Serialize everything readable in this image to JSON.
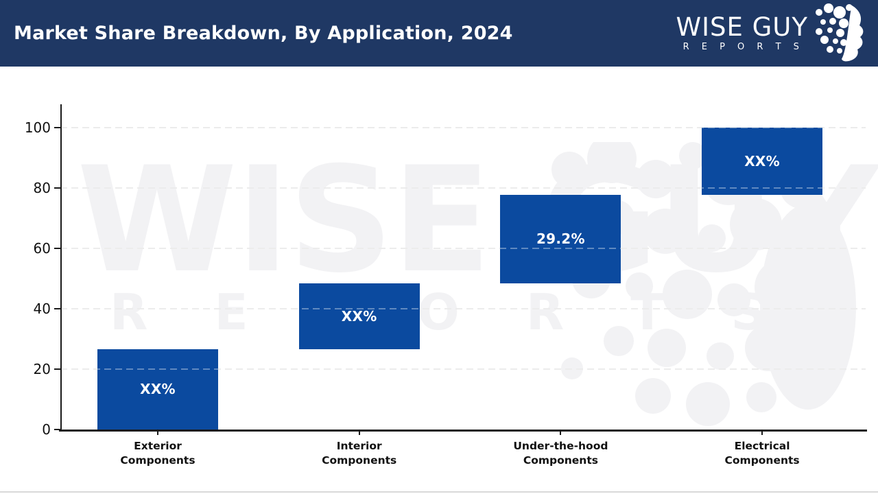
{
  "header": {
    "title": "Market Share Breakdown, By Application, 2024",
    "logo_line1": "WISE GUY",
    "logo_line2": "R E P O R T S"
  },
  "watermark": {
    "line1": "WISE GUY",
    "line2": "R E P O R T S"
  },
  "colors": {
    "header_bg": "#1f3864",
    "bar": "#0b4a9f",
    "grid": "#e2e2e2",
    "axis": "#1a1a1a",
    "watermark": "#f2f2f4",
    "bottom_rule": "#d9d9d9"
  },
  "chart_data": {
    "type": "bar",
    "subtype": "floating-segment waterfall of market share percentages",
    "title": "Market Share Breakdown, By Application, 2024",
    "categories": [
      "Exterior Components",
      "Interior Components",
      "Under-the-hood Components",
      "Electrical Components"
    ],
    "bars": [
      {
        "category": "Exterior Components",
        "category_lines": [
          "Exterior",
          "Components"
        ],
        "start": 0,
        "end": 26.6,
        "height_pct": 26.6,
        "label": "XX%"
      },
      {
        "category": "Interior Components",
        "category_lines": [
          "Interior",
          "Components"
        ],
        "start": 26.6,
        "end": 48.5,
        "height_pct": 21.9,
        "label": "XX%"
      },
      {
        "category": "Under-the-hood Components",
        "category_lines": [
          "Under-the-hood",
          "Components"
        ],
        "start": 48.5,
        "end": 77.7,
        "height_pct": 29.2,
        "label": "29.2%"
      },
      {
        "category": "Electrical Components",
        "category_lines": [
          "Electrical",
          "Components"
        ],
        "start": 77.7,
        "end": 100,
        "height_pct": 22.3,
        "label": "XX%"
      }
    ],
    "ylim": [
      0,
      100
    ],
    "yticks": [
      0,
      20,
      40,
      60,
      80,
      100
    ],
    "xlabel": "",
    "ylabel": "",
    "grid": "horizontal dashed",
    "legend": "none"
  }
}
